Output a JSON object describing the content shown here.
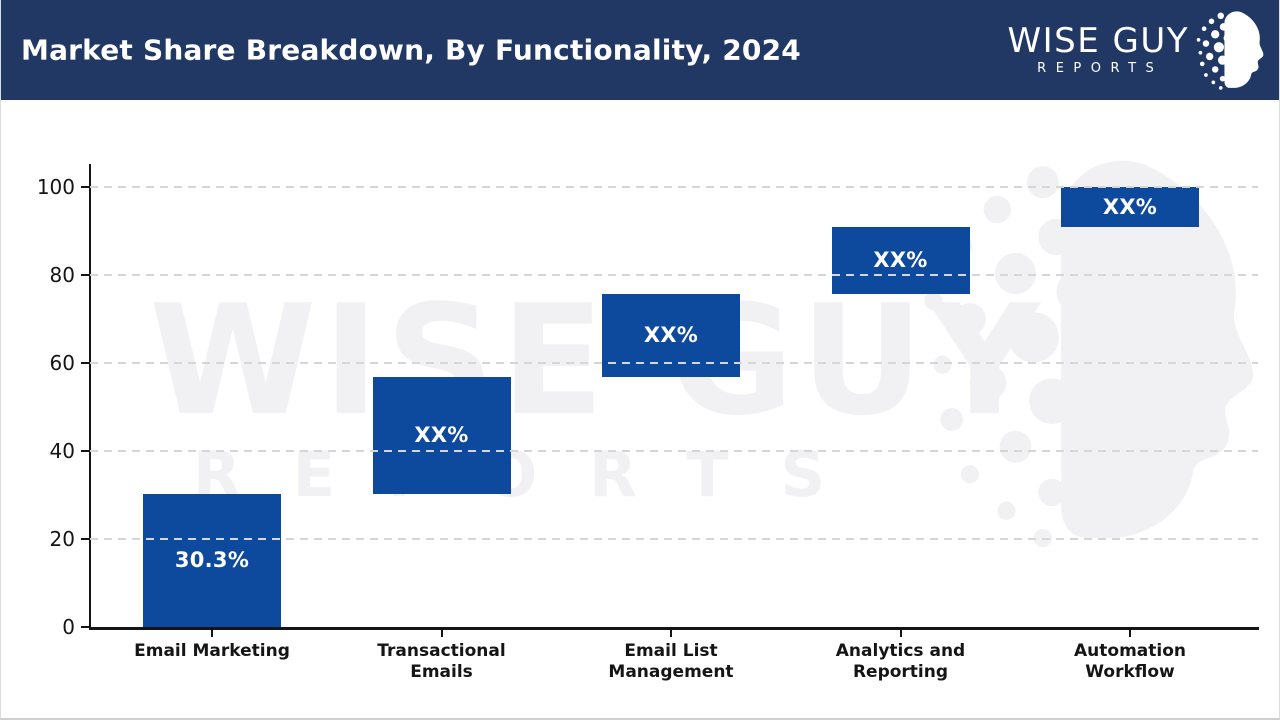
{
  "header": {
    "title": "Market Share Breakdown, By Functionality, 2024",
    "logo": {
      "line1": "WISE GUY",
      "line2": "REPORTS"
    }
  },
  "watermark": {
    "line1": "WISE GUY",
    "line2": "REPORTS"
  },
  "colors": {
    "header_bg": "#213864",
    "bar": "#0d4a9e",
    "grid": "#d6d6d6",
    "axis": "#151515",
    "watermark": "#f1f1f4",
    "bar_label": "#ffffff"
  },
  "chart_data": {
    "type": "bar",
    "subtype": "waterfall",
    "title": "Market Share Breakdown, By Functionality, 2024",
    "xlabel": "",
    "ylabel": "",
    "ylim": [
      0,
      105
    ],
    "yticks": [
      0,
      20,
      40,
      60,
      80,
      100
    ],
    "grid": "horizontal-dashed",
    "legend": "none",
    "categories": [
      "Email Marketing",
      "Transactional Emails",
      "Email List Management",
      "Analytics and Reporting",
      "Automation Workflow"
    ],
    "segments": [
      {
        "category": "Email Marketing",
        "label_lines": [
          "Email Marketing"
        ],
        "start": 0,
        "end": 30.3,
        "value_label": "30.3%"
      },
      {
        "category": "Transactional Emails",
        "label_lines": [
          "Transactional",
          "Emails"
        ],
        "start": 30.3,
        "end": 56.8,
        "value_label": "XX%"
      },
      {
        "category": "Email List Management",
        "label_lines": [
          "Email List",
          "Management"
        ],
        "start": 56.8,
        "end": 75.7,
        "value_label": "XX%"
      },
      {
        "category": "Analytics and Reporting",
        "label_lines": [
          "Analytics and",
          "Reporting"
        ],
        "start": 75.7,
        "end": 90.9,
        "value_label": "XX%"
      },
      {
        "category": "Automation Workflow",
        "label_lines": [
          "Automation",
          "Workflow"
        ],
        "start": 90.9,
        "end": 100,
        "value_label": "XX%"
      }
    ]
  }
}
